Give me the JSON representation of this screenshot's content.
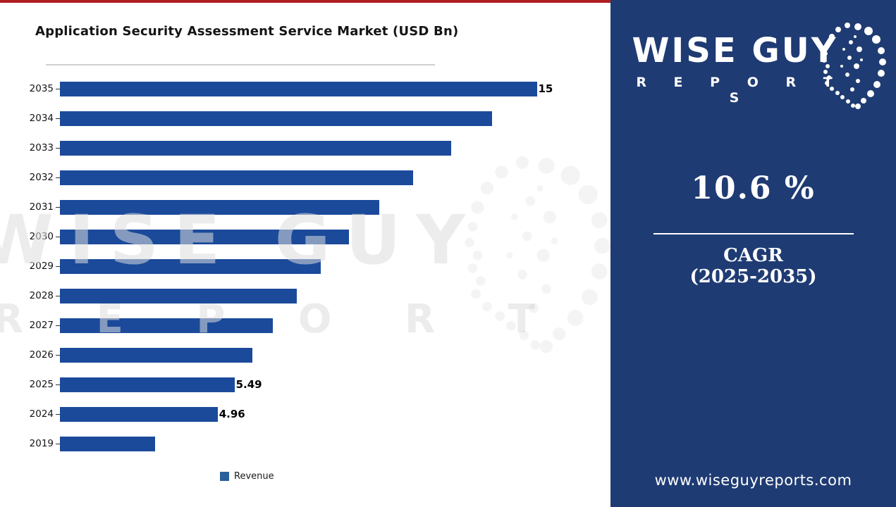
{
  "accent_strip_color": "#b01e23",
  "chart_data": {
    "type": "bar",
    "orientation": "horizontal",
    "title": "Application Security Assessment Service Market (USD Bn)",
    "unit": "USD Bn",
    "categories_top_to_bottom": [
      "2035",
      "2034",
      "2033",
      "2032",
      "2031",
      "2030",
      "2029",
      "2028",
      "2027",
      "2026",
      "2025",
      "2024",
      "2019"
    ],
    "values": [
      15,
      13.6,
      12.3,
      11.1,
      10.05,
      9.1,
      8.2,
      7.45,
      6.7,
      6.05,
      5.49,
      4.96,
      3.0
    ],
    "value_labels": {
      "2035": "15",
      "2025": "5.49",
      "2024": "4.96"
    },
    "xlim": [
      0,
      15.6
    ],
    "grid": false,
    "bar_color": "#1b4a9b",
    "legend": {
      "label": "Revenue",
      "position": "bottom-center",
      "color": "#2a6099"
    }
  },
  "watermark": {
    "line1": "WISE GUY",
    "line2": "R E P O R T S"
  },
  "sidebar": {
    "background": "#1f3b73",
    "logo_line1": "WISE GUY",
    "logo_line2": "R E P O R T S",
    "cagr_value": "10.6 %",
    "cagr_line1": "CAGR",
    "cagr_line2": "(2025-2035)",
    "website": "www.wiseguyreports.com"
  }
}
